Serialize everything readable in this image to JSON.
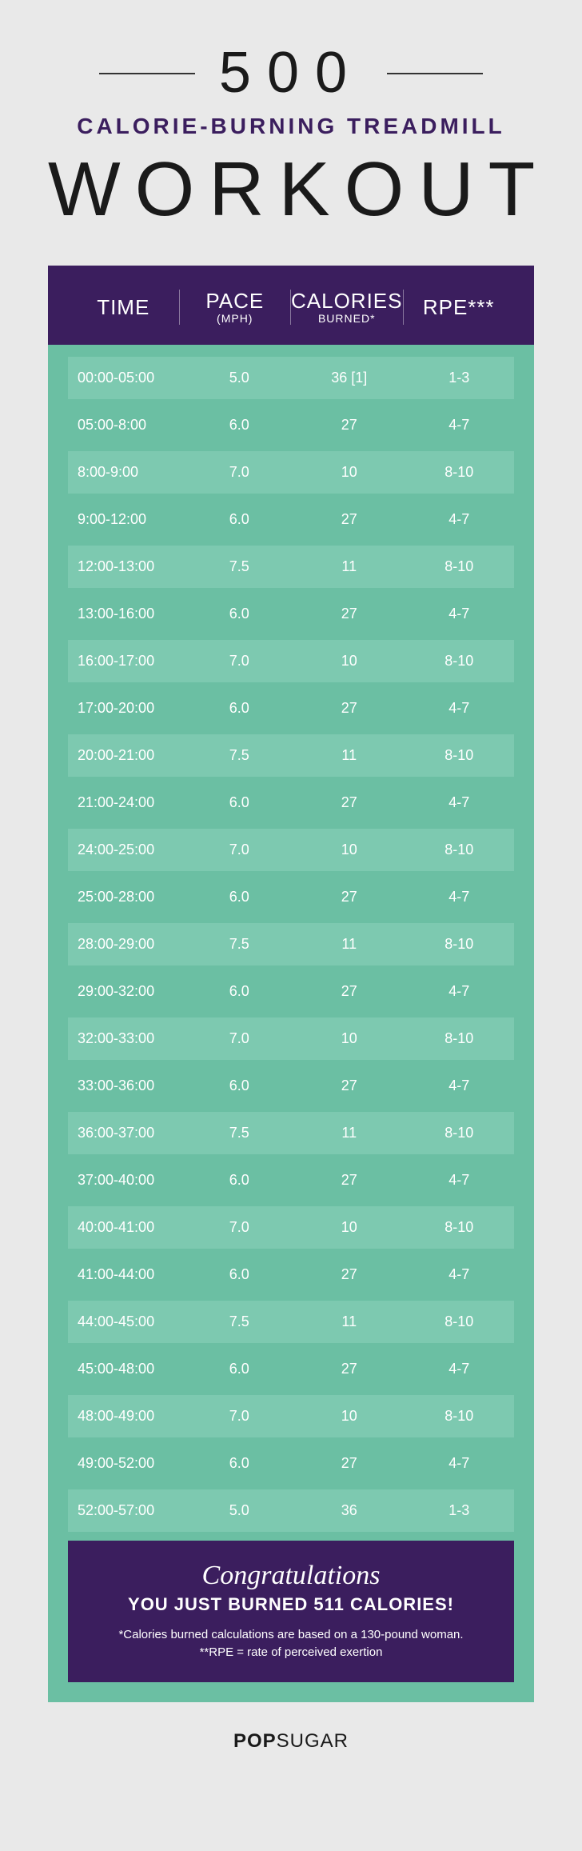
{
  "header": {
    "number": "500",
    "subtitle": "CALORIE-BURNING TREADMILL",
    "title": "WORKOUT"
  },
  "columns": [
    {
      "label": "TIME",
      "sub": ""
    },
    {
      "label": "PACE",
      "sub": "(MPH)"
    },
    {
      "label": "CALORIES",
      "sub": "BURNED*"
    },
    {
      "label": "RPE***",
      "sub": ""
    }
  ],
  "colors": {
    "row_light": "#7dc9b0",
    "row_dark": "#6bbfa3"
  },
  "rows": [
    {
      "time": "00:00-05:00",
      "pace": "5.0",
      "cal": "36 [1]",
      "rpe": "1-3"
    },
    {
      "time": "05:00-8:00",
      "pace": "6.0",
      "cal": "27",
      "rpe": "4-7"
    },
    {
      "time": "8:00-9:00",
      "pace": "7.0",
      "cal": "10",
      "rpe": "8-10"
    },
    {
      "time": "9:00-12:00",
      "pace": "6.0",
      "cal": "27",
      "rpe": "4-7"
    },
    {
      "time": "12:00-13:00",
      "pace": "7.5",
      "cal": "11",
      "rpe": "8-10"
    },
    {
      "time": "13:00-16:00",
      "pace": "6.0",
      "cal": "27",
      "rpe": "4-7"
    },
    {
      "time": "16:00-17:00",
      "pace": "7.0",
      "cal": "10",
      "rpe": "8-10"
    },
    {
      "time": "17:00-20:00",
      "pace": "6.0",
      "cal": "27",
      "rpe": "4-7"
    },
    {
      "time": "20:00-21:00",
      "pace": "7.5",
      "cal": "11",
      "rpe": "8-10"
    },
    {
      "time": "21:00-24:00",
      "pace": "6.0",
      "cal": "27",
      "rpe": "4-7"
    },
    {
      "time": "24:00-25:00",
      "pace": "7.0",
      "cal": "10",
      "rpe": "8-10"
    },
    {
      "time": "25:00-28:00",
      "pace": "6.0",
      "cal": "27",
      "rpe": "4-7"
    },
    {
      "time": "28:00-29:00",
      "pace": "7.5",
      "cal": "11",
      "rpe": "8-10"
    },
    {
      "time": "29:00-32:00",
      "pace": "6.0",
      "cal": "27",
      "rpe": "4-7"
    },
    {
      "time": "32:00-33:00",
      "pace": "7.0",
      "cal": "10",
      "rpe": "8-10"
    },
    {
      "time": "33:00-36:00",
      "pace": "6.0",
      "cal": "27",
      "rpe": "4-7"
    },
    {
      "time": "36:00-37:00",
      "pace": "7.5",
      "cal": "11",
      "rpe": "8-10"
    },
    {
      "time": "37:00-40:00",
      "pace": "6.0",
      "cal": "27",
      "rpe": "4-7"
    },
    {
      "time": "40:00-41:00",
      "pace": "7.0",
      "cal": "10",
      "rpe": "8-10"
    },
    {
      "time": "41:00-44:00",
      "pace": "6.0",
      "cal": "27",
      "rpe": "4-7"
    },
    {
      "time": "44:00-45:00",
      "pace": "7.5",
      "cal": "11",
      "rpe": "8-10"
    },
    {
      "time": "45:00-48:00",
      "pace": "6.0",
      "cal": "27",
      "rpe": "4-7"
    },
    {
      "time": "48:00-49:00",
      "pace": "7.0",
      "cal": "10",
      "rpe": "8-10"
    },
    {
      "time": "49:00-52:00",
      "pace": "6.0",
      "cal": "27",
      "rpe": "4-7"
    },
    {
      "time": "52:00-57:00",
      "pace": "5.0",
      "cal": "36",
      "rpe": "1-3"
    }
  ],
  "footer": {
    "congrats": "Congratulations",
    "burned": "YOU JUST BURNED 511 CALORIES!",
    "note1": "*Calories burned calculations are based on a 130-pound woman.",
    "note2": "**RPE = rate of perceived exertion"
  },
  "brand": {
    "pre": "POP",
    "post": "SUGAR"
  }
}
